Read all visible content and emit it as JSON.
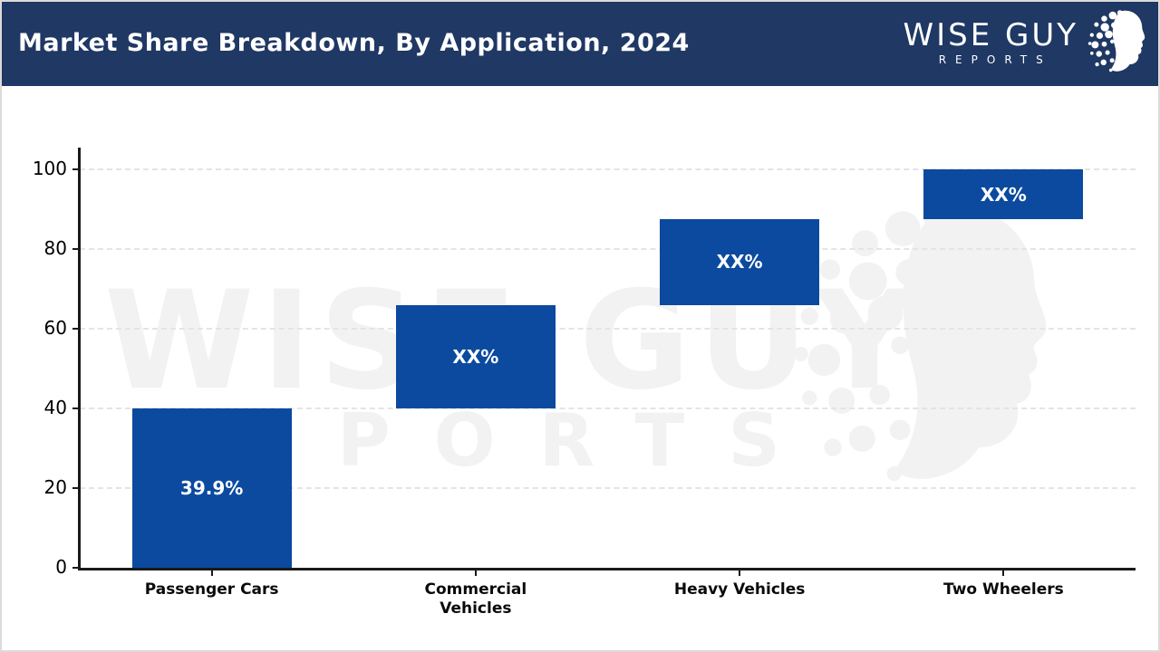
{
  "header": {
    "title": "Market Share Breakdown, By Application, 2024",
    "logo": {
      "line1": "WISE GUY",
      "line2": "REPORTS"
    }
  },
  "watermark": {
    "line1": "WISE GUY",
    "line2": "PORTS"
  },
  "colors": {
    "header_bg": "#1f3864",
    "bar_fill": "#0b4a9f",
    "bar_label": "#ffffff",
    "gridline": "#e4e4e4",
    "axis": "#1a1a1a",
    "watermark": "#f2f2f2"
  },
  "chart_data": {
    "type": "bar",
    "subtype": "waterfall",
    "title": "Market Share Breakdown, By Application, 2024",
    "categories": [
      "Passenger Cars",
      "Commercial\nVehicles",
      "Heavy Vehicles",
      "Two Wheelers"
    ],
    "segments": [
      {
        "category": "Passenger Cars",
        "start": 0,
        "end": 39.9,
        "value": 39.9,
        "label": "39.9%"
      },
      {
        "category": "Commercial Vehicles",
        "start": 40,
        "end": 66,
        "value": 26,
        "label": "XX%"
      },
      {
        "category": "Heavy Vehicles",
        "start": 66,
        "end": 87.5,
        "value": 21.5,
        "label": "XX%"
      },
      {
        "category": "Two Wheelers",
        "start": 87.5,
        "end": 100,
        "value": 12.5,
        "label": "XX%"
      }
    ],
    "xlabel": "",
    "ylabel": "",
    "ylim": [
      0,
      100
    ],
    "yticks": [
      0,
      20,
      40,
      60,
      80,
      100
    ],
    "grid": "horizontal-dashed",
    "legend": "none"
  }
}
